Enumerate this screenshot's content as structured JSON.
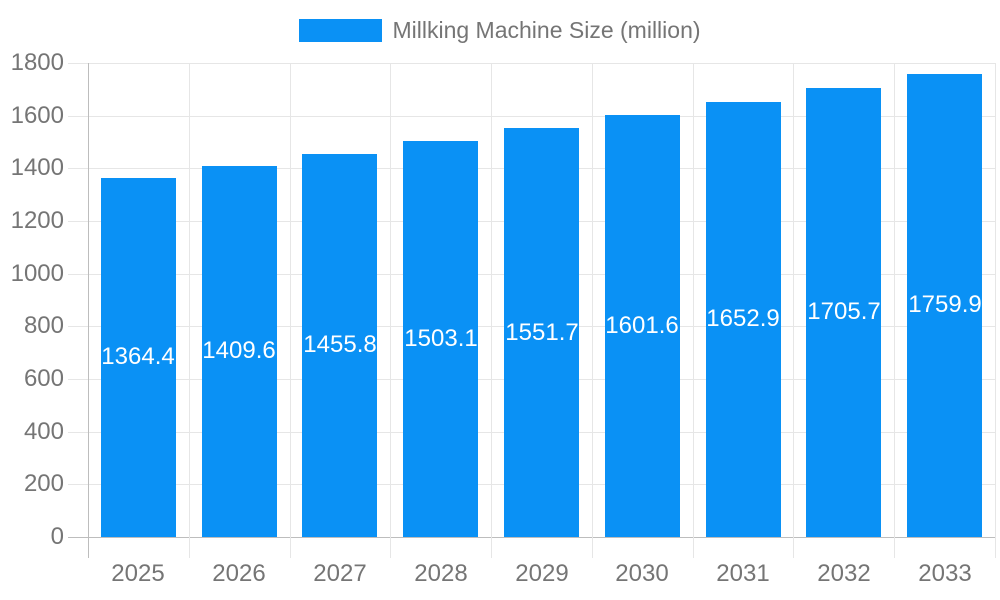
{
  "chart_data": {
    "type": "bar",
    "title": "Millking Machine Size (million)",
    "legend": {
      "label": "Millking Machine Size (million)",
      "position": "top"
    },
    "categories": [
      "2025",
      "2026",
      "2027",
      "2028",
      "2029",
      "2030",
      "2031",
      "2032",
      "2033"
    ],
    "series": [
      {
        "name": "Millking Machine Size (million)",
        "values": [
          1364.4,
          1409.6,
          1455.8,
          1503.1,
          1551.7,
          1601.6,
          1652.9,
          1705.7,
          1759.9
        ]
      }
    ],
    "value_labels": [
      "1364.4",
      "1409.6",
      "1455.8",
      "1503.1",
      "1551.7",
      "1601.6",
      "1652.9",
      "1705.7",
      "1759.9"
    ],
    "xlabel": "",
    "ylabel": "",
    "ylim": [
      0,
      1800
    ],
    "ytick_step": 200,
    "ytick_labels": [
      "0",
      "200",
      "400",
      "600",
      "800",
      "1000",
      "1200",
      "1400",
      "1600",
      "1800"
    ],
    "grid": true,
    "legend_position": "top",
    "colors": {
      "bar": "#0a91f5",
      "value_label": "#ffffff",
      "axis_text": "#757575",
      "grid_line": "#e6e6e6",
      "axis_line": "#bdbdbd",
      "background": "#ffffff"
    }
  }
}
